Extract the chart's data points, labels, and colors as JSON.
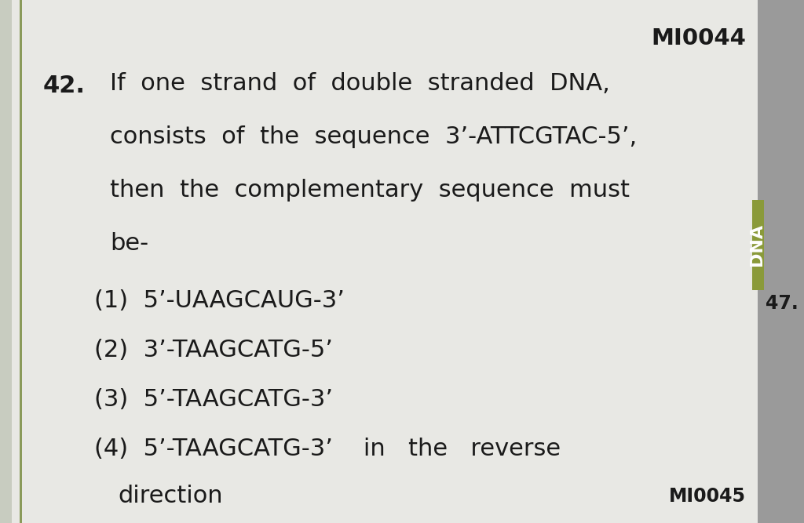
{
  "background_color": "#c8ccc0",
  "page_color": "#e8e8e4",
  "spine_color": "#9a9a9a",
  "green_line_color": "#8a9a5a",
  "tab_color": "#8a9a3a",
  "title": "MI0044",
  "question_number": "42.",
  "q_line1": "If  one  strand  of  double  stranded  DNA,",
  "q_line2": "consists  of  the  sequence  3’-ATTCGTAC-5’,",
  "q_line3": "then  the  complementary  sequence  must",
  "q_line4": "be-",
  "opt1": "(1)  5’-UAAGCAUG-3’",
  "opt2": "(2)  3’-TAAGCATG-5’",
  "opt3": "(3)  5’-TAAGCATG-3’",
  "opt4a": "(4)  5’-TAAGCATG-3’    in   the   reverse",
  "opt4b": "      direction",
  "side_label": "DNA",
  "side_number": "47.",
  "bottom_text": "MI0045",
  "text_color": "#1a1a1a",
  "font_size_title": 21,
  "font_size_q": 22,
  "font_size_opt": 22
}
